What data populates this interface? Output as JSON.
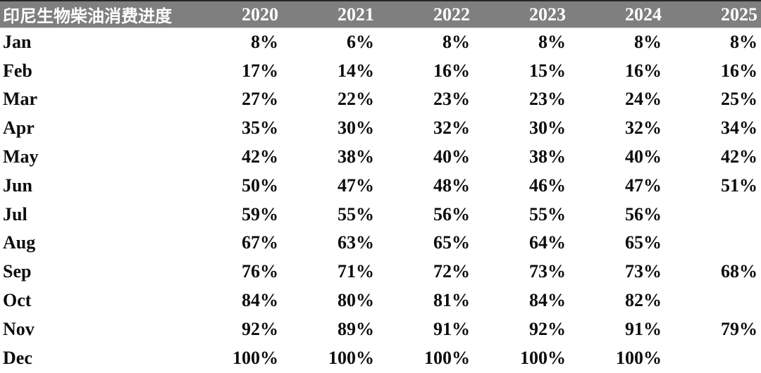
{
  "table": {
    "title": "印尼生物柴油消费进度",
    "years": [
      "2020",
      "2021",
      "2022",
      "2023",
      "2024",
      "2025"
    ],
    "rows": [
      {
        "month": "Jan",
        "values": [
          "8%",
          "6%",
          "8%",
          "8%",
          "8%",
          "8%"
        ]
      },
      {
        "month": "Feb",
        "values": [
          "17%",
          "14%",
          "16%",
          "15%",
          "16%",
          "16%"
        ]
      },
      {
        "month": "Mar",
        "values": [
          "27%",
          "22%",
          "23%",
          "23%",
          "24%",
          "25%"
        ]
      },
      {
        "month": "Apr",
        "values": [
          "35%",
          "30%",
          "32%",
          "30%",
          "32%",
          "34%"
        ]
      },
      {
        "month": "May",
        "values": [
          "42%",
          "38%",
          "40%",
          "38%",
          "40%",
          "42%"
        ]
      },
      {
        "month": "Jun",
        "values": [
          "50%",
          "47%",
          "48%",
          "46%",
          "47%",
          "51%"
        ]
      },
      {
        "month": "Jul",
        "values": [
          "59%",
          "55%",
          "56%",
          "55%",
          "56%",
          ""
        ]
      },
      {
        "month": "Aug",
        "values": [
          "67%",
          "63%",
          "65%",
          "64%",
          "65%",
          ""
        ]
      },
      {
        "month": "Sep",
        "values": [
          "76%",
          "71%",
          "72%",
          "73%",
          "73%",
          "68%"
        ]
      },
      {
        "month": "Oct",
        "values": [
          "84%",
          "80%",
          "81%",
          "84%",
          "82%",
          ""
        ]
      },
      {
        "month": "Nov",
        "values": [
          "92%",
          "89%",
          "91%",
          "92%",
          "91%",
          "79%"
        ]
      },
      {
        "month": "Dec",
        "values": [
          "100%",
          "100%",
          "100%",
          "100%",
          "100%",
          ""
        ]
      }
    ],
    "colors": {
      "header_bg": "#7f7f7f",
      "header_text": "#ffffff",
      "header_top_border": "#262626",
      "body_text": "#0d0d0d",
      "background": "#ffffff"
    }
  },
  "chart_data": {
    "type": "table",
    "title": "印尼生物柴油消费进度",
    "categories": [
      "Jan",
      "Feb",
      "Mar",
      "Apr",
      "May",
      "Jun",
      "Jul",
      "Aug",
      "Sep",
      "Oct",
      "Nov",
      "Dec"
    ],
    "unit": "percent",
    "series": [
      {
        "name": "2020",
        "values": [
          8,
          17,
          27,
          35,
          42,
          50,
          59,
          67,
          76,
          84,
          92,
          100
        ]
      },
      {
        "name": "2021",
        "values": [
          6,
          14,
          22,
          30,
          38,
          47,
          55,
          63,
          71,
          80,
          89,
          100
        ]
      },
      {
        "name": "2022",
        "values": [
          8,
          16,
          23,
          32,
          40,
          48,
          56,
          65,
          72,
          81,
          91,
          100
        ]
      },
      {
        "name": "2023",
        "values": [
          8,
          15,
          23,
          30,
          38,
          46,
          55,
          64,
          73,
          84,
          92,
          100
        ]
      },
      {
        "name": "2024",
        "values": [
          8,
          16,
          24,
          32,
          40,
          47,
          56,
          65,
          73,
          82,
          91,
          100
        ]
      },
      {
        "name": "2025",
        "values": [
          8,
          16,
          25,
          34,
          42,
          51,
          null,
          null,
          68,
          null,
          79,
          null
        ]
      }
    ]
  }
}
